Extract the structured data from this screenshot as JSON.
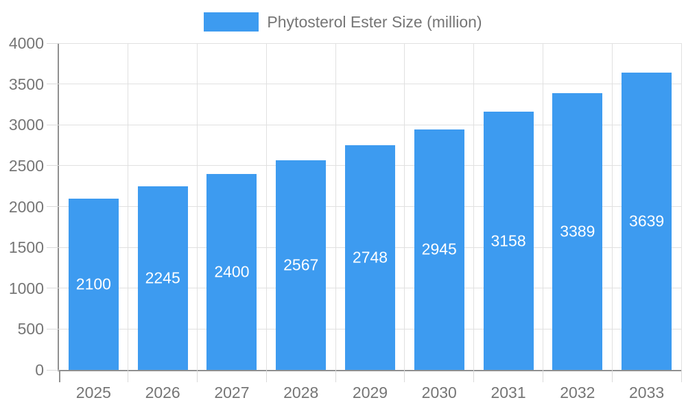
{
  "chart_data": {
    "type": "bar",
    "title": "Phytosterol Ester Size (million)",
    "legend": {
      "position": "top",
      "entries": [
        {
          "label": "Phytosterol Ester Size (million)",
          "color": "#3d9bf0"
        }
      ]
    },
    "categories": [
      "2025",
      "2026",
      "2027",
      "2028",
      "2029",
      "2030",
      "2031",
      "2032",
      "2033"
    ],
    "series": [
      {
        "name": "Phytosterol Ester Size (million)",
        "values": [
          2100,
          2245,
          2400,
          2567,
          2748,
          2945,
          3158,
          3389,
          3639
        ]
      }
    ],
    "value_labels": [
      "2100",
      "2245",
      "2400",
      "2567",
      "2748",
      "2945",
      "3158",
      "3389",
      "3639"
    ],
    "xlabel": "",
    "ylabel": "",
    "ylim": [
      0,
      4000
    ],
    "yticks": [
      0,
      500,
      1000,
      1500,
      2000,
      2500,
      3000,
      3500,
      4000
    ],
    "ytick_labels": [
      "0",
      "500",
      "1000",
      "1500",
      "2000",
      "2500",
      "3000",
      "3500",
      "4000"
    ],
    "grid": true,
    "colors": {
      "bar": "#3d9bf0",
      "value_label": "#ffffff",
      "axis_text": "#757575",
      "gridline": "#e0e0e0",
      "axis_line": "#8f8f8f",
      "background": "#ffffff"
    }
  }
}
